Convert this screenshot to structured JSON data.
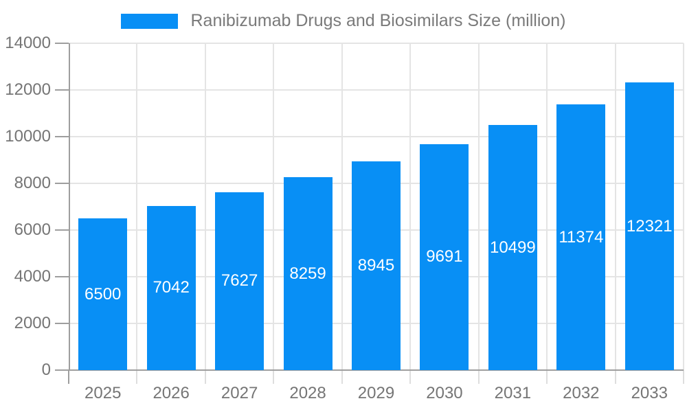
{
  "chart_data": {
    "type": "bar",
    "title": "Ranibizumab Drugs and Biosimilars Size (million)",
    "categories": [
      "2025",
      "2026",
      "2027",
      "2028",
      "2029",
      "2030",
      "2031",
      "2032",
      "2033"
    ],
    "values": [
      6500,
      7042,
      7627,
      8259,
      8945,
      9691,
      10499,
      11374,
      12321
    ],
    "series": [
      {
        "name": "Ranibizumab Drugs and Biosimilars Size (million)",
        "values": [
          6500,
          7042,
          7627,
          8259,
          8945,
          9691,
          10499,
          11374,
          12321
        ]
      }
    ],
    "xlabel": "",
    "ylabel": "",
    "ylim": [
      0,
      14000
    ],
    "yticks": [
      0,
      2000,
      4000,
      6000,
      8000,
      10000,
      12000,
      14000
    ],
    "grid": true,
    "legend_position": "top-center",
    "bar_label_position": "inside-center",
    "colors": {
      "bar": "#088ff5",
      "bar_label": "#ffffff",
      "axis_text": "#757575",
      "legend_text": "#7a7a7a",
      "axis_line": "#9e9e9e",
      "gridline": "#e4e4e4",
      "x_tick": "#dedede"
    }
  }
}
